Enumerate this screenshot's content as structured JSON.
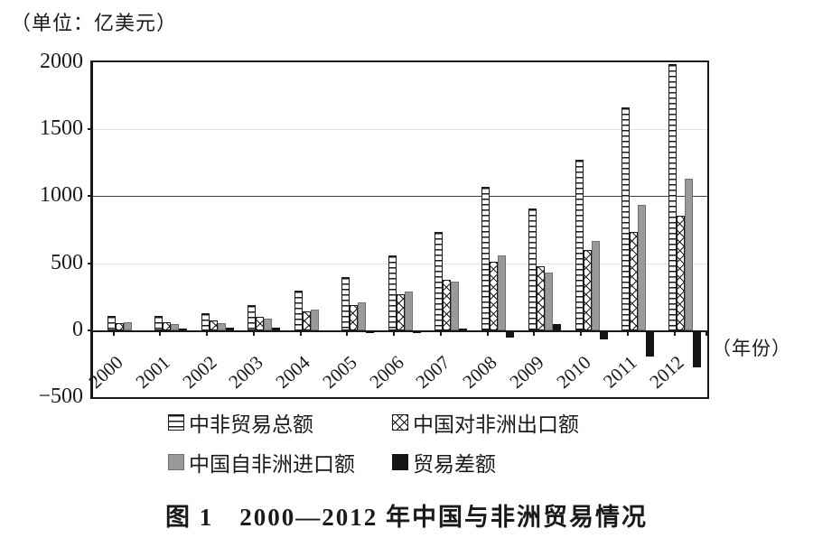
{
  "unit_label": "（单位：亿美元）",
  "caption": "图 1　2000—2012 年中国与非洲贸易情况",
  "chart_data": {
    "type": "bar",
    "title": "图 1　2000—2012 年中国与非洲贸易情况",
    "unit_label": "（单位：亿美元）",
    "xlabel": "（年份）",
    "ylabel": "亿美元",
    "ylim": [
      -500,
      2000
    ],
    "yticks": [
      2000,
      1500,
      1000,
      500,
      0,
      -500
    ],
    "gridlines": {
      "dark": [
        1000
      ],
      "light": [
        1500,
        500
      ]
    },
    "legend_position": "bottom",
    "categories": [
      "2000",
      "2001",
      "2002",
      "2003",
      "2004",
      "2005",
      "2006",
      "2007",
      "2008",
      "2009",
      "2010",
      "2011",
      "2012"
    ],
    "series": [
      {
        "name": "中非贸易总额",
        "pattern": "horizontal-stripes",
        "color": "#ffffff",
        "values": [
          106,
          108,
          124,
          185,
          294,
          397,
          555,
          735,
          1068,
          910,
          1269,
          1663,
          1984
        ]
      },
      {
        "name": "中国对非洲出口额",
        "pattern": "crosshatch",
        "color": "#ffffff",
        "values": [
          50,
          60,
          70,
          101,
          138,
          187,
          267,
          373,
          508,
          477,
          600,
          732,
          853
        ]
      },
      {
        "name": "中国自非洲进口额",
        "pattern": "solid-gray",
        "color": "#9a9a9a",
        "values": [
          56,
          48,
          54,
          84,
          156,
          210,
          288,
          362,
          560,
          433,
          669,
          932,
          1131
        ]
      },
      {
        "name": "贸易差额",
        "pattern": "solid-black",
        "color": "#151515",
        "values": [
          -6,
          12,
          16,
          17,
          -18,
          -23,
          -21,
          11,
          -52,
          44,
          -69,
          -200,
          -279
        ]
      }
    ]
  }
}
